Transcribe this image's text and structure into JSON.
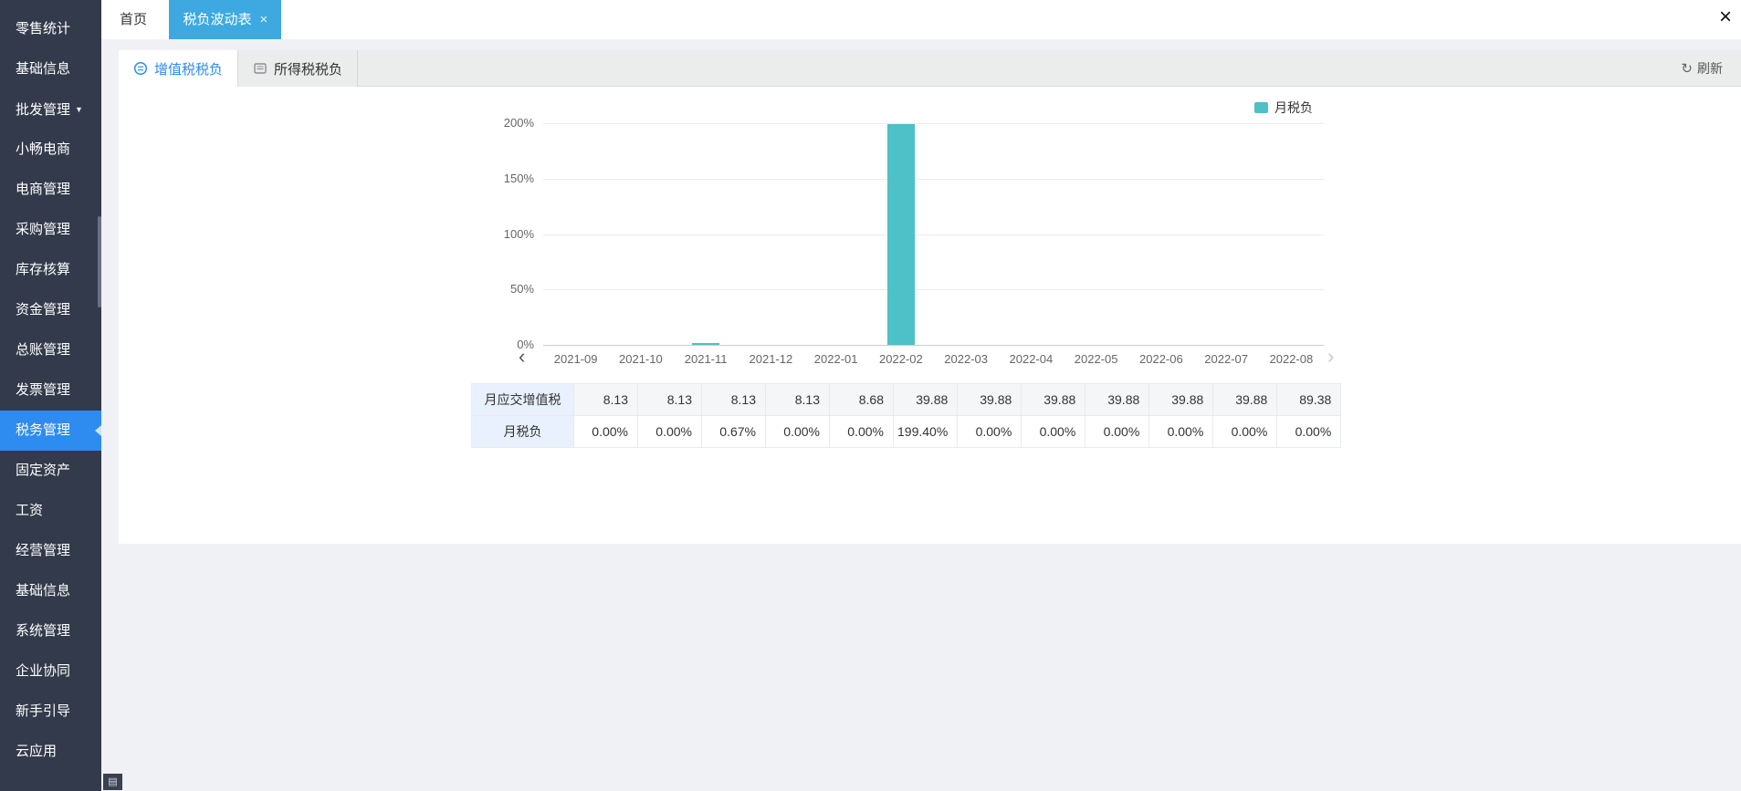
{
  "window": {
    "close_glyph": "×"
  },
  "icons": {
    "dropdown": "▼",
    "refresh": "↻",
    "collapse": "▤",
    "tab_close": "×"
  },
  "sidebar": {
    "items": [
      {
        "label": "零售统计"
      },
      {
        "label": "基础信息"
      },
      {
        "label": "批发管理",
        "has_dropdown": true
      },
      {
        "label": "小畅电商"
      },
      {
        "label": "电商管理"
      },
      {
        "label": "采购管理"
      },
      {
        "label": "库存核算"
      },
      {
        "label": "资金管理"
      },
      {
        "label": "总账管理"
      },
      {
        "label": "发票管理"
      },
      {
        "label": "税务管理",
        "active": true
      },
      {
        "label": "固定资产"
      },
      {
        "label": "工资"
      },
      {
        "label": "经营管理"
      },
      {
        "label": "基础信息"
      },
      {
        "label": "系统管理"
      },
      {
        "label": "企业协同"
      },
      {
        "label": "新手引导"
      },
      {
        "label": "云应用"
      }
    ]
  },
  "tabbar": {
    "home_label": "首页",
    "active_tab_label": "税负波动表"
  },
  "panel": {
    "tabs": [
      {
        "label": "增值税税负",
        "active": true
      },
      {
        "label": "所得税税负",
        "active": false
      }
    ],
    "refresh_label": "刷新"
  },
  "chart_data": {
    "type": "bar",
    "title": "",
    "legend": [
      "月税负"
    ],
    "legend_position": "top-right",
    "categories": [
      "2021-09",
      "2021-10",
      "2021-11",
      "2021-12",
      "2022-01",
      "2022-02",
      "2022-03",
      "2022-04",
      "2022-05",
      "2022-06",
      "2022-07",
      "2022-08"
    ],
    "series": [
      {
        "name": "月税负",
        "values": [
          0.0,
          0.0,
          0.67,
          0.0,
          0.0,
          199.4,
          0.0,
          0.0,
          0.0,
          0.0,
          0.0,
          0.0
        ]
      }
    ],
    "ytick_labels": [
      "0%",
      "50%",
      "100%",
      "150%",
      "200%"
    ],
    "ytick_values": [
      0,
      50,
      100,
      150,
      200
    ],
    "ylim": [
      0,
      200
    ],
    "grid": true,
    "bar_color": "#4ec0c8",
    "pagination": {
      "prev": "‹",
      "next": "›"
    }
  },
  "table": {
    "rows": [
      {
        "header": "月应交增值税",
        "values": [
          "8.13",
          "8.13",
          "8.13",
          "8.13",
          "8.68",
          "39.88",
          "39.88",
          "39.88",
          "39.88",
          "39.88",
          "39.88",
          "89.38"
        ]
      },
      {
        "header": "月税负",
        "values": [
          "0.00%",
          "0.00%",
          "0.67%",
          "0.00%",
          "0.00%",
          "199.40%",
          "0.00%",
          "0.00%",
          "0.00%",
          "0.00%",
          "0.00%",
          "0.00%"
        ]
      }
    ]
  },
  "colors": {
    "sidebar_bg": "#333a4b",
    "sidebar_active": "#2e8bf0",
    "tab_active_bg": "#3da9e0",
    "accent_blue": "#2e8bf0",
    "bar_teal": "#4ec0c8",
    "table_header_bg": "#e8f1fd"
  }
}
